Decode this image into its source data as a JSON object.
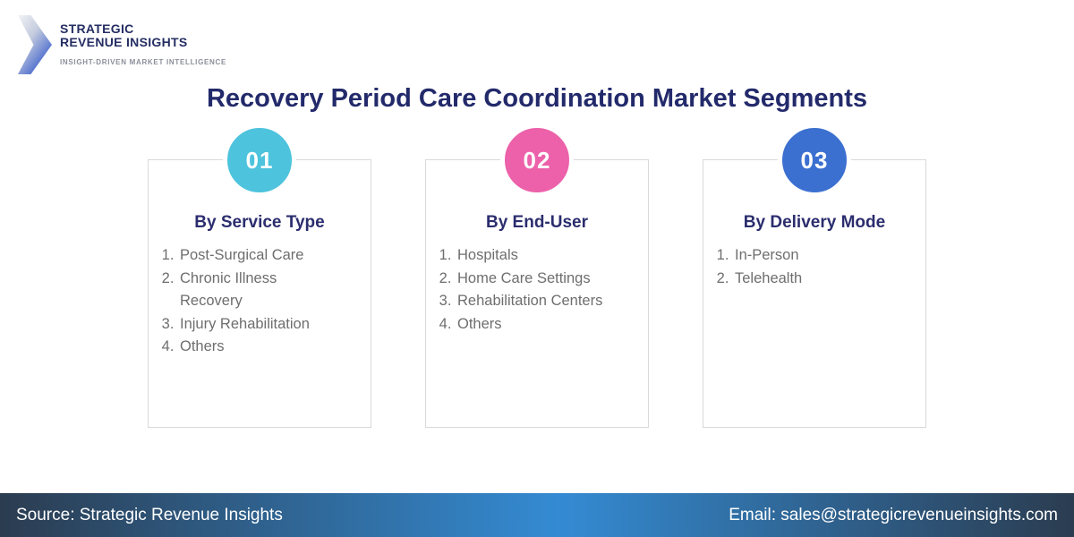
{
  "logo": {
    "line1": "STRATEGIC",
    "line2": "REVENUE INSIGHTS",
    "tagline": "INSIGHT-DRIVEN MARKET INTELLIGENCE"
  },
  "title": "Recovery Period Care Coordination Market Segments",
  "cards": [
    {
      "number": "01",
      "color": "#4dc3dd",
      "heading": "By Service Type",
      "items": [
        "Post-Surgical Care",
        "Chronic Illness Recovery",
        "Injury Rehabilitation",
        "Others"
      ]
    },
    {
      "number": "02",
      "color": "#ec61a9",
      "heading": "By End-User",
      "items": [
        "Hospitals",
        "Home Care Settings",
        "Rehabilitation Centers",
        "Others"
      ]
    },
    {
      "number": "03",
      "color": "#3b70d0",
      "heading": "By Delivery Mode",
      "items": [
        "In-Person",
        "Telehealth"
      ]
    }
  ],
  "footer": {
    "source": "Source: Strategic Revenue Insights",
    "email": "Email: sales@strategicrevenueinsights.com"
  },
  "colors": {
    "title_text": "#232a6b",
    "heading_text": "#2b2d6e",
    "body_text": "#6e6e6e",
    "card_border": "#d9d9d9",
    "logo_text": "#252e63",
    "logo_tagline": "#8b8f9a",
    "logo_gradient_start": "#f2f3f6",
    "logo_gradient_end": "#2e55ca",
    "footer_edge": "#2b3c50",
    "footer_center": "#348bd3"
  }
}
